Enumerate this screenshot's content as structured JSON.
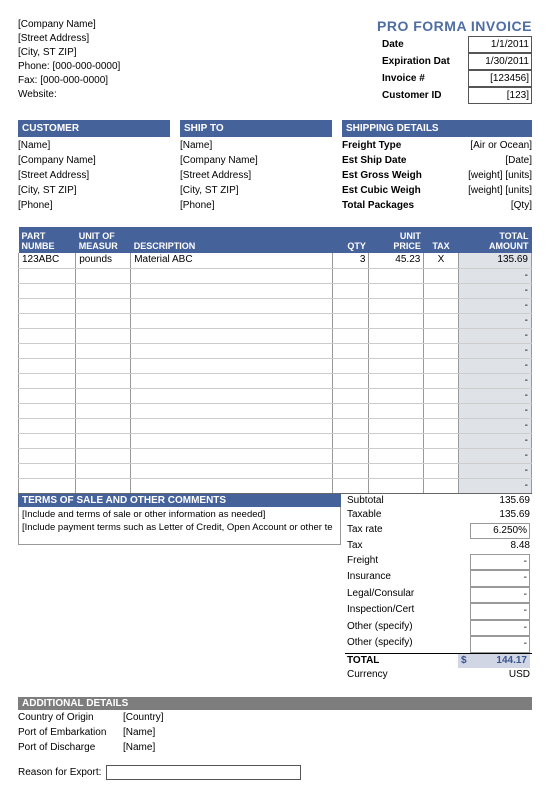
{
  "title": "PRO FORMA INVOICE",
  "company": {
    "name": "[Company Name]",
    "street": "[Street Address]",
    "citystzip": "[City, ST  ZIP]",
    "phone_label": "Phone:",
    "phone": "[000-000-0000]",
    "fax_label": "Fax:",
    "fax": "[000-000-0000]",
    "website_label": "Website:"
  },
  "meta": {
    "date_label": "Date",
    "date": "1/1/2011",
    "exp_label": "Expiration Dat",
    "exp": "1/30/2011",
    "inv_label": "Invoice #",
    "inv": "[123456]",
    "cust_label": "Customer ID",
    "cust": "[123]"
  },
  "customer": {
    "header": "CUSTOMER",
    "name": "[Name]",
    "company": "[Company Name]",
    "street": "[Street Address]",
    "citystzip": "[City, ST  ZIP]",
    "phone": "[Phone]"
  },
  "shipto": {
    "header": "SHIP TO",
    "name": "[Name]",
    "company": "[Company Name]",
    "street": "[Street Address]",
    "citystzip": "[City, ST  ZIP]",
    "phone": "[Phone]"
  },
  "shipping": {
    "header": "SHIPPING DETAILS",
    "freight_l": "Freight Type",
    "freight_v": "[Air or Ocean]",
    "shipdate_l": "Est Ship Date",
    "shipdate_v": "[Date]",
    "gross_l": "Est Gross Weigh",
    "gross_v": "[weight] [units]",
    "cubic_l": "Est Cubic Weigh",
    "cubic_v": "[weight] [units]",
    "pkg_l": "Total Packages",
    "pkg_v": "[Qty]"
  },
  "items": {
    "headers": {
      "part": "PART NUMBE",
      "unit": "UNIT OF MEASUR",
      "desc": "DESCRIPTION",
      "qty": "QTY",
      "price": "UNIT PRICE",
      "tax": "TAX",
      "amount": "TOTAL AMOUNT"
    },
    "rows": [
      {
        "part": "123ABC",
        "unit": "pounds",
        "desc": "Material ABC",
        "qty": "3",
        "price": "45.23",
        "tax": "X",
        "amount": "135.69"
      }
    ],
    "empty_count": 15,
    "dash": "-"
  },
  "terms": {
    "header": "TERMS OF SALE AND OTHER COMMENTS",
    "l1": "[Include and terms of sale or other information as needed]",
    "l2": "[Include payment terms such as Letter of Credit, Open Account or other te"
  },
  "totals": {
    "subtotal_l": "Subtotal",
    "subtotal_v": "135.69",
    "taxable_l": "Taxable",
    "taxable_v": "135.69",
    "rate_l": "Tax rate",
    "rate_v": "6.250%",
    "tax_l": "Tax",
    "tax_v": "8.48",
    "freight_l": "Freight",
    "freight_v": "-",
    "ins_l": "Insurance",
    "ins_v": "-",
    "legal_l": "Legal/Consular",
    "legal_v": "-",
    "insp_l": "Inspection/Cert",
    "insp_v": "-",
    "oth1_l": "Other (specify)",
    "oth1_v": "-",
    "oth2_l": "Other (specify)",
    "oth2_v": "-",
    "total_l": "TOTAL",
    "total_sym": "$",
    "total_v": "144.17",
    "curr_l": "Currency",
    "curr_v": "USD"
  },
  "addl": {
    "header": "ADDITIONAL DETAILS",
    "origin_l": "Country of Origin",
    "origin_v": "[Country]",
    "embark_l": "Port of Embarkation",
    "embark_v": "[Name]",
    "disch_l": "Port of Discharge",
    "disch_v": "[Name]"
  },
  "export_l": "Reason for Export:"
}
